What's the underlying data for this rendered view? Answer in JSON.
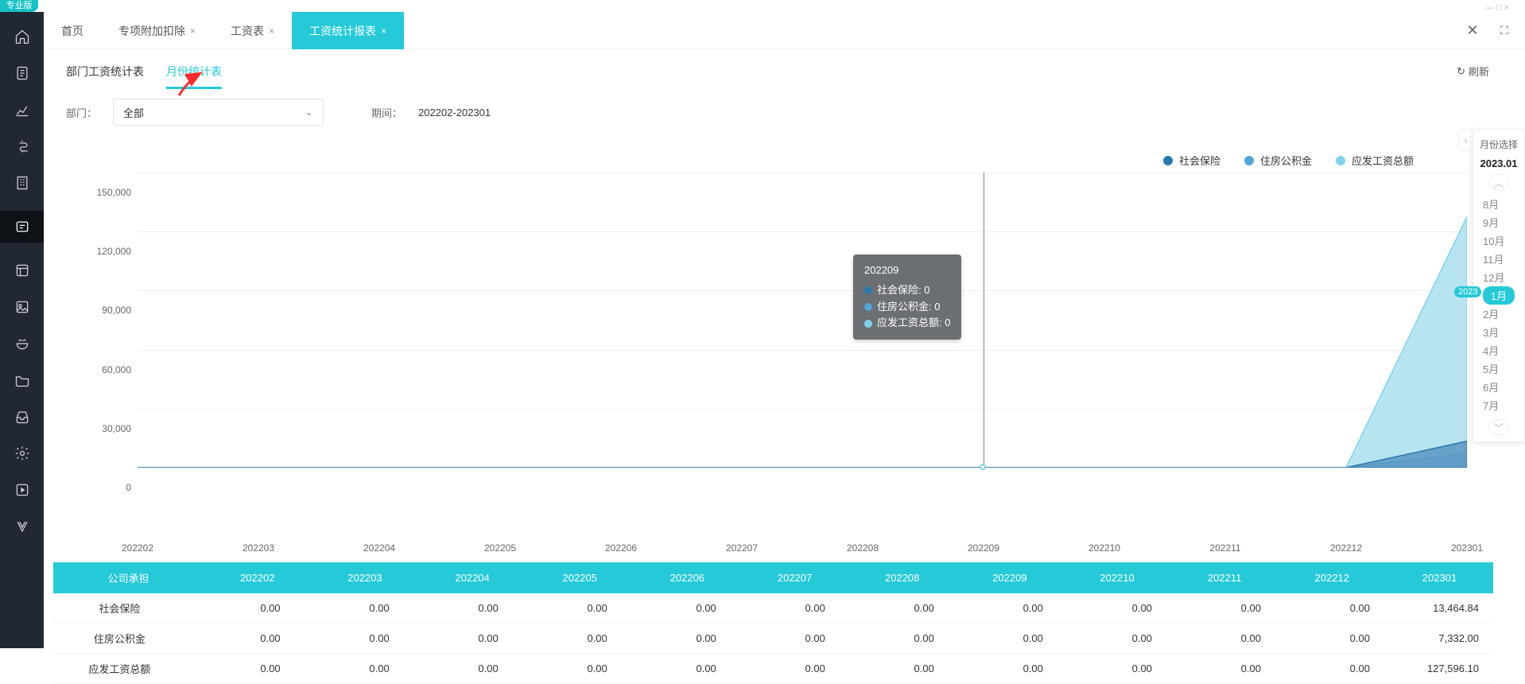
{
  "pro_badge": "专业版",
  "tabs": [
    {
      "label": "首页",
      "closable": false
    },
    {
      "label": "专项附加扣除",
      "closable": true
    },
    {
      "label": "工资表",
      "closable": true
    },
    {
      "label": "工资统计报表",
      "closable": true,
      "active": true
    }
  ],
  "subtabs": {
    "a": "部门工资统计表",
    "b": "月份统计表"
  },
  "refresh_label": "刷新",
  "filter": {
    "dept_label": "部门：",
    "dept_value": "全部",
    "period_label": "期间：",
    "period_value": "202202-202301"
  },
  "legend": {
    "items": [
      {
        "label": "社会保险",
        "color": "#2a7ab0"
      },
      {
        "label": "住房公积金",
        "color": "#4ea7d9"
      },
      {
        "label": "应发工资总额",
        "color": "#7fd3e8"
      }
    ]
  },
  "chart": {
    "type": "area",
    "ylim": [
      0,
      150000
    ],
    "yticks": [
      0,
      30000,
      60000,
      90000,
      120000,
      150000
    ],
    "ytick_labels": [
      "0",
      "30,000",
      "60,000",
      "90,000",
      "120,000",
      "150,000"
    ],
    "categories": [
      "202202",
      "202203",
      "202204",
      "202205",
      "202206",
      "202207",
      "202208",
      "202209",
      "202210",
      "202211",
      "202212",
      "202301"
    ],
    "series": [
      {
        "name": "社会保险",
        "color": "#2a7ab0",
        "fill": "#5a97c2",
        "values": [
          0,
          0,
          0,
          0,
          0,
          0,
          0,
          0,
          0,
          0,
          0,
          13464.84
        ]
      },
      {
        "name": "住房公积金",
        "color": "#4ea7d9",
        "fill": "#7bbde0",
        "values": [
          0,
          0,
          0,
          0,
          0,
          0,
          0,
          0,
          0,
          0,
          0,
          7332.0
        ]
      },
      {
        "name": "应发工资总额",
        "color": "#7fd3e8",
        "fill": "#a9e1ef",
        "values": [
          0,
          0,
          0,
          0,
          0,
          0,
          0,
          0,
          0,
          0,
          0,
          127596.1
        ]
      }
    ],
    "background": "#ffffff",
    "grid_color": "#eeeeee",
    "hover_index": 7
  },
  "tooltip": {
    "title": "202209",
    "rows": [
      {
        "label": "社会保险: 0",
        "color": "#2a7ab0"
      },
      {
        "label": "住房公积金: 0",
        "color": "#4ea7d9"
      },
      {
        "label": "应发工资总额: 0",
        "color": "#7fd3e8"
      }
    ]
  },
  "table": {
    "header_first": "公司承担",
    "columns": [
      "202202",
      "202203",
      "202204",
      "202205",
      "202206",
      "202207",
      "202208",
      "202209",
      "202210",
      "202211",
      "202212",
      "202301"
    ],
    "rows": [
      {
        "label": "社会保险",
        "values": [
          "0.00",
          "0.00",
          "0.00",
          "0.00",
          "0.00",
          "0.00",
          "0.00",
          "0.00",
          "0.00",
          "0.00",
          "0.00",
          "13,464.84"
        ]
      },
      {
        "label": "住房公积金",
        "values": [
          "0.00",
          "0.00",
          "0.00",
          "0.00",
          "0.00",
          "0.00",
          "0.00",
          "0.00",
          "0.00",
          "0.00",
          "0.00",
          "7,332.00"
        ]
      },
      {
        "label": "应发工资总额",
        "values": [
          "0.00",
          "0.00",
          "0.00",
          "0.00",
          "0.00",
          "0.00",
          "0.00",
          "0.00",
          "0.00",
          "0.00",
          "0.00",
          "127,596.10"
        ]
      }
    ],
    "header_bg": "#25c9d8"
  },
  "month_panel": {
    "title": "月份选择",
    "selected_year": "2023.01",
    "items": [
      "8月",
      "9月",
      "10月",
      "11月",
      "12月",
      "1月",
      "2月",
      "3月",
      "4月",
      "5月",
      "6月",
      "7月"
    ],
    "active_index": 5,
    "year_badge": "2023"
  }
}
